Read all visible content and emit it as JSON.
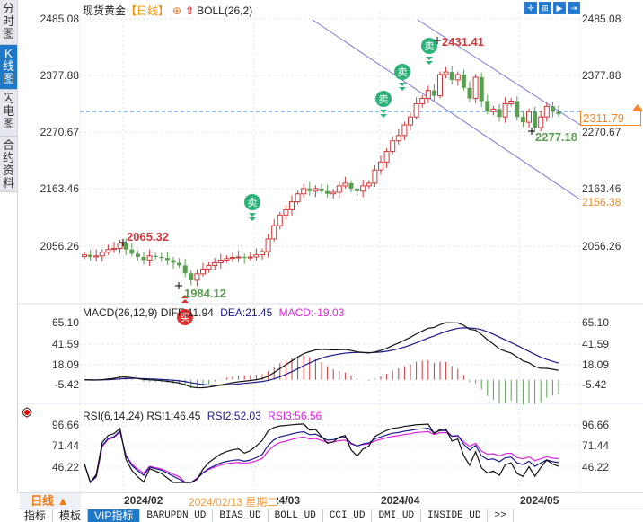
{
  "sidebar": {
    "tabs": [
      {
        "label": "分时图",
        "active": false
      },
      {
        "label": "K线图",
        "active": true
      },
      {
        "label": "闪电图",
        "active": false
      },
      {
        "label": "合约资料",
        "active": false
      }
    ]
  },
  "header": {
    "instrument": "现货黄金",
    "period": "【日线】",
    "indicator": "BOLL(26,2)",
    "add_icon": "circle-plus-icon",
    "arrow_icon": "up-arrow-icon",
    "tools": [
      "crosshair-icon",
      "zoom-range-icon",
      "zoom-range-play-icon",
      "jump-latest-icon"
    ]
  },
  "price_axis": {
    "left_ticks": [
      "2485.08",
      "2377.88",
      "2270.67",
      "2163.46",
      "2056.26"
    ],
    "right_ticks": [
      "2485.08",
      "2377.88",
      "2270.67",
      "2163.46",
      "2056.26"
    ],
    "current_price": "2311.79",
    "lower_band_value": "2156.38"
  },
  "annotations": {
    "high_label": "2431.41",
    "low_label": "1984.12",
    "local_high_label": "2065.32",
    "recent_low_label": "2277.18",
    "sell_badge": "卖",
    "buy_badge": "买"
  },
  "macd": {
    "title": "MACD(26,12,9)",
    "diff": "DIFF:11.94",
    "dea": "DEA:21.45",
    "macd": "MACD:-19.03",
    "ticks": [
      "65.10",
      "41.59",
      "18.09",
      "-5.42"
    ]
  },
  "rsi": {
    "title": "RSI(6,14,24)",
    "rsi1": "RSI1:46.45",
    "rsi2": "RSI2:52.03",
    "rsi3": "RSI3:56.56",
    "ticks": [
      "96.66",
      "71.44",
      "46.22"
    ]
  },
  "time_axis": {
    "period_button": "日线 ▲",
    "labels": [
      "2024/02",
      "24/03",
      "2024/04",
      "2024/05"
    ],
    "cursor_date": "2024/02/13 星期二"
  },
  "bottom_tabs": [
    {
      "label": "指标",
      "active": false
    },
    {
      "label": "模板",
      "active": false
    },
    {
      "label": "VIP指标",
      "active": true
    },
    {
      "label": "BARUPDN_UD",
      "active": false
    },
    {
      "label": "BIAS_UD",
      "active": false
    },
    {
      "label": "BOLL_UD",
      "active": false
    },
    {
      "label": "CCI_UD",
      "active": false
    },
    {
      "label": "DMI_UD",
      "active": false
    },
    {
      "label": "INSIDE_UD",
      "active": false
    },
    {
      "label": ">>",
      "active": false
    }
  ],
  "colors": {
    "up": "#d0393a",
    "down": "#5a9e52",
    "dea": "#1a1a8c",
    "macd_label": "#e020e0",
    "accent_orange": "#f5882a",
    "active_blue": "#1f78c8",
    "channel": "#7a7ad8"
  },
  "chart_data": [
    {
      "type": "candlestick",
      "title": "现货黄金 【日线】 BOLL(26,2)",
      "ylim": [
        1980,
        2490
      ],
      "y_ticks": [
        2485.08,
        2377.88,
        2270.67,
        2163.46,
        2056.26
      ],
      "x_labels": [
        "2024/02",
        "2024/03",
        "2024/04",
        "2024/05"
      ],
      "annotations": {
        "max": 2431.41,
        "min": 1984.12,
        "local_high": 2065.32,
        "recent_low": 2277.18,
        "last": 2311.79,
        "lower_band": 2156.38
      },
      "approx_close": [
        2040,
        2036,
        2038,
        2045,
        2050,
        2052,
        2062,
        2050,
        2042,
        2036,
        2030,
        2038,
        2036,
        2034,
        2030,
        2025,
        2020,
        2005,
        1992,
        2004,
        2013,
        2020,
        2025,
        2030,
        2033,
        2035,
        2036,
        2034,
        2036,
        2040,
        2046,
        2070,
        2095,
        2115,
        2125,
        2140,
        2155,
        2165,
        2160,
        2165,
        2160,
        2155,
        2158,
        2170,
        2175,
        2165,
        2160,
        2170,
        2175,
        2200,
        2215,
        2235,
        2255,
        2265,
        2285,
        2300,
        2325,
        2335,
        2350,
        2340,
        2380,
        2385,
        2370,
        2380,
        2355,
        2335,
        2375,
        2330,
        2310,
        2315,
        2300,
        2325,
        2330,
        2300,
        2290,
        2310,
        2280,
        2300,
        2320,
        2310,
        2305
      ]
    },
    {
      "type": "line+bar",
      "title": "MACD(26,12,9)",
      "series": [
        {
          "name": "DIFF",
          "last": 11.94
        },
        {
          "name": "DEA",
          "last": 21.45
        },
        {
          "name": "MACD",
          "last": -19.03
        }
      ],
      "y_ticks": [
        65.1,
        41.59,
        18.09,
        -5.42
      ]
    },
    {
      "type": "line",
      "title": "RSI(6,14,24)",
      "series": [
        {
          "name": "RSI1",
          "last": 46.45
        },
        {
          "name": "RSI2",
          "last": 52.03
        },
        {
          "name": "RSI3",
          "last": 56.56
        }
      ],
      "y_ticks": [
        96.66,
        71.44,
        46.22
      ]
    }
  ]
}
